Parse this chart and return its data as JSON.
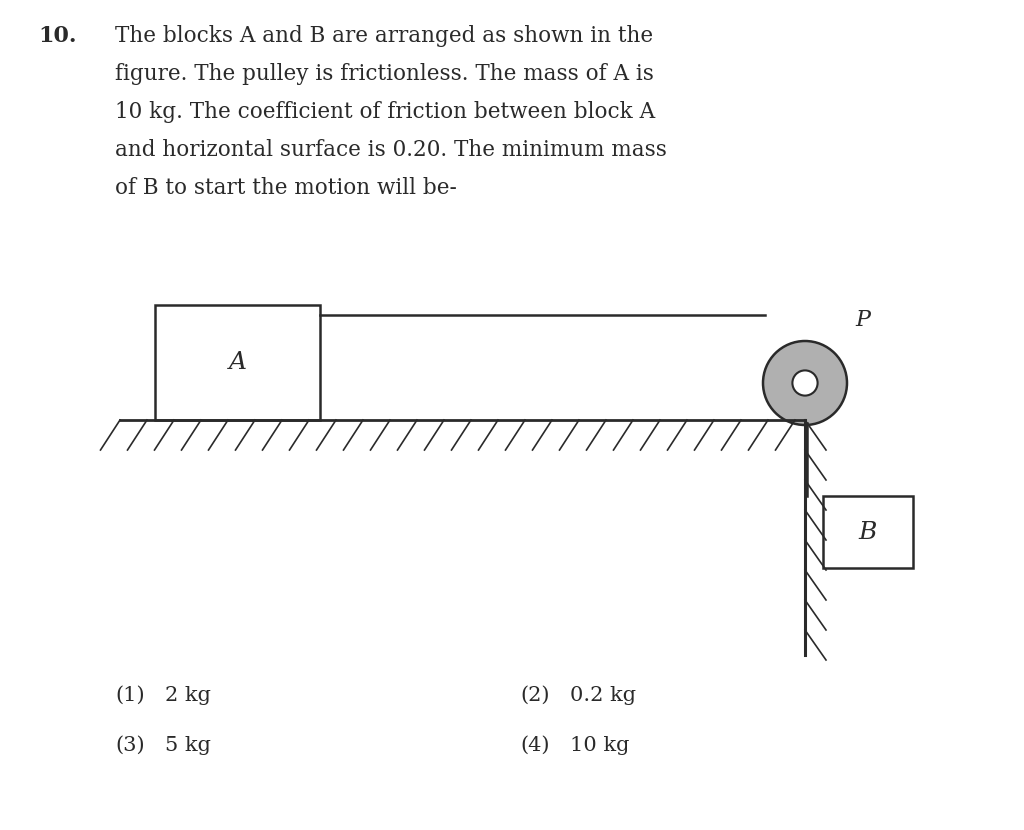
{
  "background_color": "#ffffff",
  "text_color": "#2a2a2a",
  "diagram_color": "#2a2a2a",
  "pulley_fill": "#b0b0b0",
  "block_fill": "#ffffff",
  "question_number": "10.",
  "question_lines": [
    "The blocks A and B are arranged as shown in the",
    "figure. The pulley is frictionless. The mass of A is",
    "10 kg. The coefficient of friction between block A",
    "and horizontal surface is 0.20. The minimum mass",
    "of B to start the motion will be-"
  ],
  "block_A_label": "A",
  "block_B_label": "B",
  "pulley_label": "P",
  "options": [
    [
      "(1)",
      "2 kg",
      "(2)",
      "0.2 kg"
    ],
    [
      "(3)",
      "5 kg",
      "(4)",
      "10 kg"
    ]
  ],
  "fig_width": 10.24,
  "fig_height": 8.3,
  "dpi": 100
}
